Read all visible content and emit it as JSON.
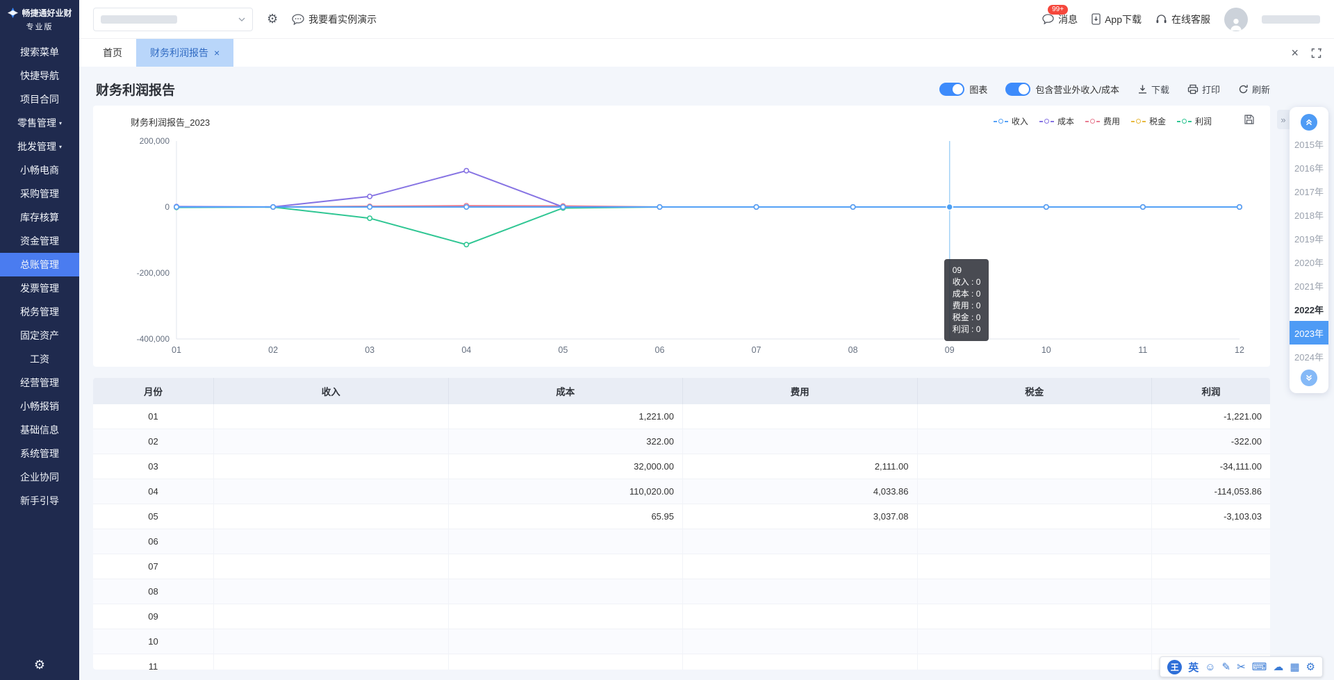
{
  "app": {
    "logo_title": "畅捷通好业财",
    "logo_subtitle": "专业版"
  },
  "icons": {
    "gear": "⚙",
    "caret": "▾",
    "close": "×",
    "double_chevron_right": "»",
    "emoji": "☺",
    "pen": "✎",
    "scissors": "✂",
    "keyboard": "⌨",
    "cloud": "☁",
    "grid": "▦",
    "settings": "⚙"
  },
  "sidebar": {
    "items": [
      {
        "label": "搜索菜单"
      },
      {
        "label": "快捷导航"
      },
      {
        "label": "项目合同"
      },
      {
        "label": "零售管理",
        "expandable": true
      },
      {
        "label": "批发管理",
        "expandable": true
      },
      {
        "label": "小畅电商"
      },
      {
        "label": "采购管理"
      },
      {
        "label": "库存核算"
      },
      {
        "label": "资金管理"
      },
      {
        "label": "总账管理",
        "active": true
      },
      {
        "label": "发票管理"
      },
      {
        "label": "税务管理"
      },
      {
        "label": "固定资产"
      },
      {
        "label": "工资"
      },
      {
        "label": "经营管理"
      },
      {
        "label": "小畅报销"
      },
      {
        "label": "基础信息"
      },
      {
        "label": "系统管理"
      },
      {
        "label": "企业协同"
      },
      {
        "label": "新手引导"
      }
    ]
  },
  "topbar": {
    "demo_label": "我要看实例演示",
    "messages_label": "消息",
    "messages_badge": "99+",
    "app_download_label": "App下载",
    "support_label": "在线客服"
  },
  "tabs": [
    {
      "label": "首页",
      "active": false,
      "closable": false
    },
    {
      "label": "财务利润报告",
      "active": true,
      "closable": true
    }
  ],
  "page": {
    "title": "财务利润报告",
    "toggle_chart_label": "图表",
    "toggle_include_label": "包含营业外收入/成本",
    "download_label": "下载",
    "print_label": "打印",
    "refresh_label": "刷新"
  },
  "chart_data": {
    "type": "line",
    "title": "财务利润报告_2023",
    "x": [
      "01",
      "02",
      "03",
      "04",
      "05",
      "06",
      "07",
      "08",
      "09",
      "10",
      "11",
      "12"
    ],
    "ylim": [
      -400000,
      200000
    ],
    "yticks": [
      200000,
      0,
      -200000,
      -400000
    ],
    "ytick_labels": [
      "200,000",
      "0",
      "-200,000",
      "-400,000"
    ],
    "legend_position": "top-right",
    "hover_index": 8,
    "series": [
      {
        "name": "收入",
        "color": "#55a1f6",
        "values": [
          0,
          0,
          0,
          0,
          0,
          0,
          0,
          0,
          0,
          0,
          0,
          0
        ]
      },
      {
        "name": "成本",
        "color": "#8673e3",
        "values": [
          1221,
          322,
          32000,
          110020,
          65.95,
          0,
          0,
          0,
          0,
          0,
          0,
          0
        ]
      },
      {
        "name": "费用",
        "color": "#e87d92",
        "values": [
          0,
          0,
          2111,
          4033.86,
          3037.08,
          0,
          0,
          0,
          0,
          0,
          0,
          0
        ]
      },
      {
        "name": "税金",
        "color": "#e7b93f",
        "values": [
          0,
          0,
          0,
          0,
          0,
          0,
          0,
          0,
          0,
          0,
          0,
          0
        ]
      },
      {
        "name": "利润",
        "color": "#2fc693",
        "values": [
          -1221,
          -322,
          -34111,
          -114053.86,
          -3103.03,
          0,
          0,
          0,
          0,
          0,
          0,
          0
        ]
      }
    ]
  },
  "tooltip": {
    "title": "09",
    "lines": [
      "收入 : 0",
      "成本 : 0",
      "费用 : 0",
      "税金 : 0",
      "利润 : 0"
    ]
  },
  "year_panel": {
    "items": [
      {
        "label": "2015年"
      },
      {
        "label": "2016年"
      },
      {
        "label": "2017年"
      },
      {
        "label": "2018年"
      },
      {
        "label": "2019年"
      },
      {
        "label": "2020年"
      },
      {
        "label": "2021年"
      },
      {
        "label": "2022年",
        "emphasis": true
      },
      {
        "label": "2023年",
        "active": true
      },
      {
        "label": "2024年"
      }
    ]
  },
  "table": {
    "headers": [
      "月份",
      "收入",
      "成本",
      "费用",
      "税金",
      "利润"
    ],
    "rows": [
      [
        "01",
        "",
        "1,221.00",
        "",
        "",
        "-1,221.00"
      ],
      [
        "02",
        "",
        "322.00",
        "",
        "",
        "-322.00"
      ],
      [
        "03",
        "",
        "32,000.00",
        "2,111.00",
        "",
        "-34,111.00"
      ],
      [
        "04",
        "",
        "110,020.00",
        "4,033.86",
        "",
        "-114,053.86"
      ],
      [
        "05",
        "",
        "65.95",
        "3,037.08",
        "",
        "-3,103.03"
      ],
      [
        "06",
        "",
        "",
        "",
        "",
        ""
      ],
      [
        "07",
        "",
        "",
        "",
        "",
        ""
      ],
      [
        "08",
        "",
        "",
        "",
        "",
        ""
      ],
      [
        "09",
        "",
        "",
        "",
        "",
        ""
      ],
      [
        "10",
        "",
        "",
        "",
        "",
        ""
      ],
      [
        "11",
        "",
        "",
        "",
        "",
        ""
      ]
    ]
  },
  "ime": {
    "logo": "王",
    "mode": "英"
  }
}
